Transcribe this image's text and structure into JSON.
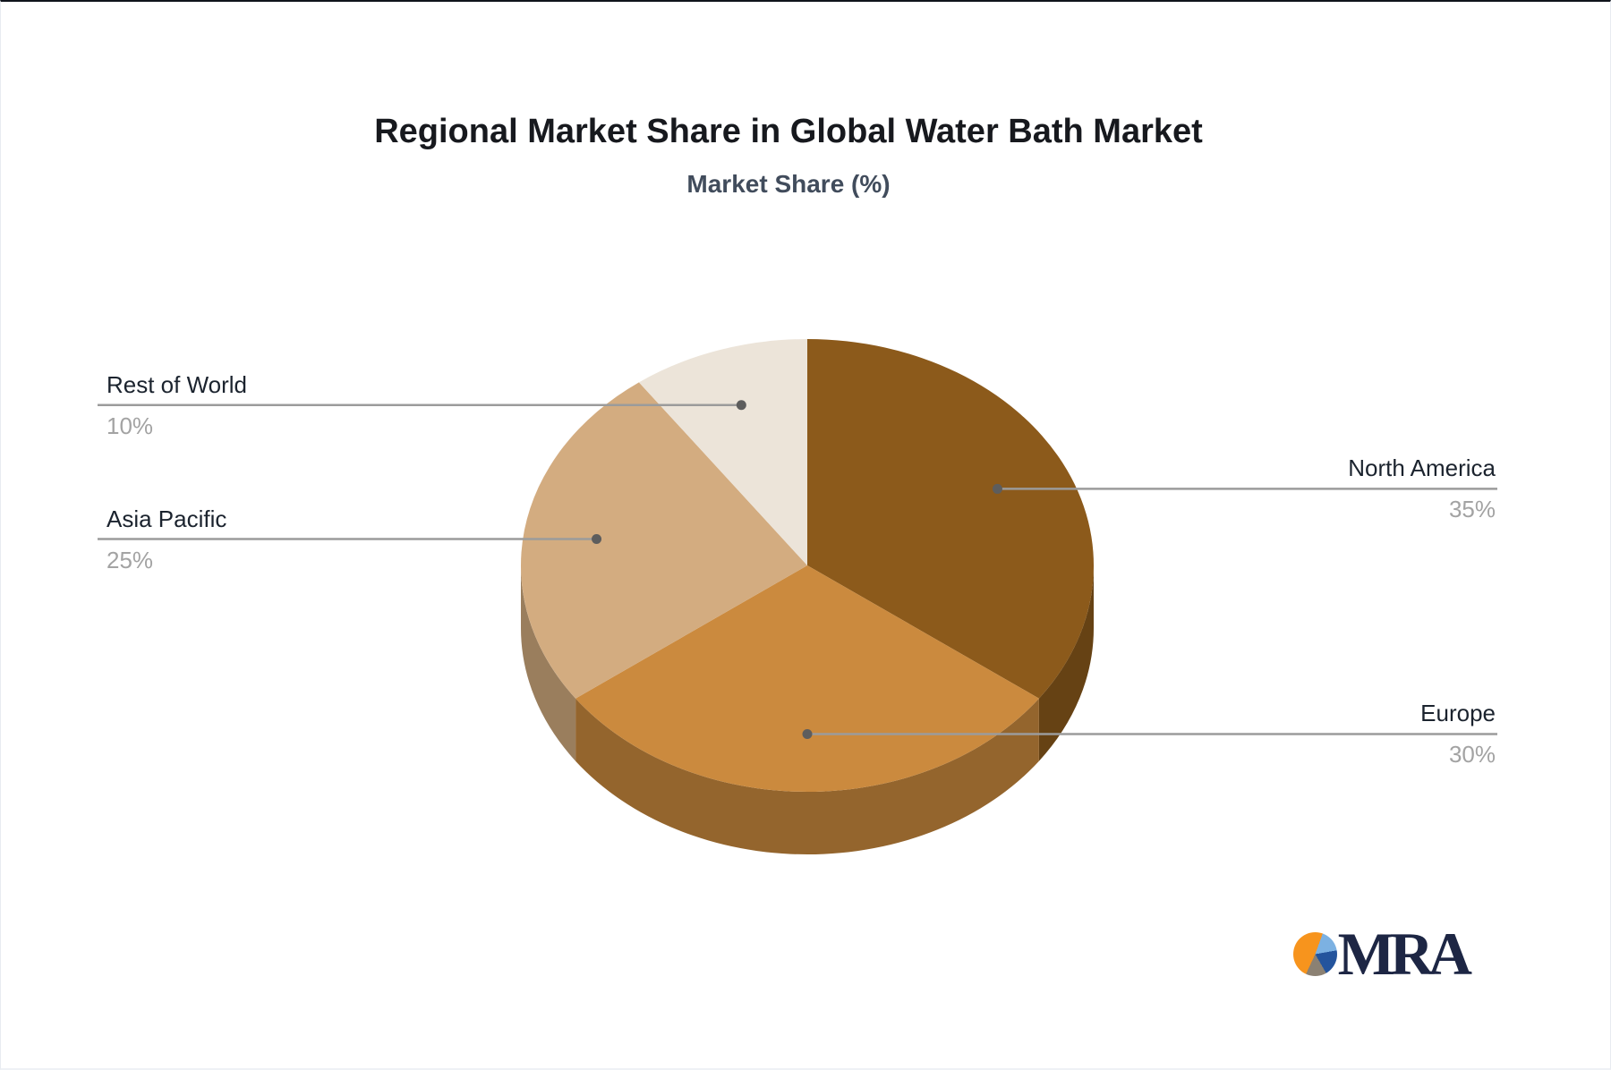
{
  "chart_data": {
    "type": "pie",
    "title": "Regional Market Share in Global Water Bath Market",
    "subtitle": "Market Share (%)",
    "unit": "%",
    "labels": [
      "North America",
      "Europe",
      "Asia Pacific",
      "Rest of World"
    ],
    "values": [
      35,
      30,
      25,
      10
    ],
    "value_labels": [
      "35%",
      "30%",
      "25%",
      "10%"
    ],
    "colors": [
      "#8c5a1b",
      "#cb8a3e",
      "#d3ac80",
      "#ece4d9"
    ],
    "start_angle_deg": 0,
    "direction": "clockwise",
    "style_3d": true,
    "legend": "none",
    "label_line_color": "#9b9b9b",
    "label_dot_color": "#5d5d5d",
    "label_name_color": "#1b232e",
    "label_value_color": "#a3a3a3",
    "title_color": "#17191e",
    "subtitle_color": "#414c5c"
  },
  "logo": {
    "text": "MRA",
    "icon": "pie-chart-icon",
    "text_color": "#1d2644",
    "icon_colors": {
      "orange": "#f7941d",
      "light_blue": "#7cb1e2",
      "dark_blue": "#24549d",
      "gray": "#8b8173"
    }
  }
}
